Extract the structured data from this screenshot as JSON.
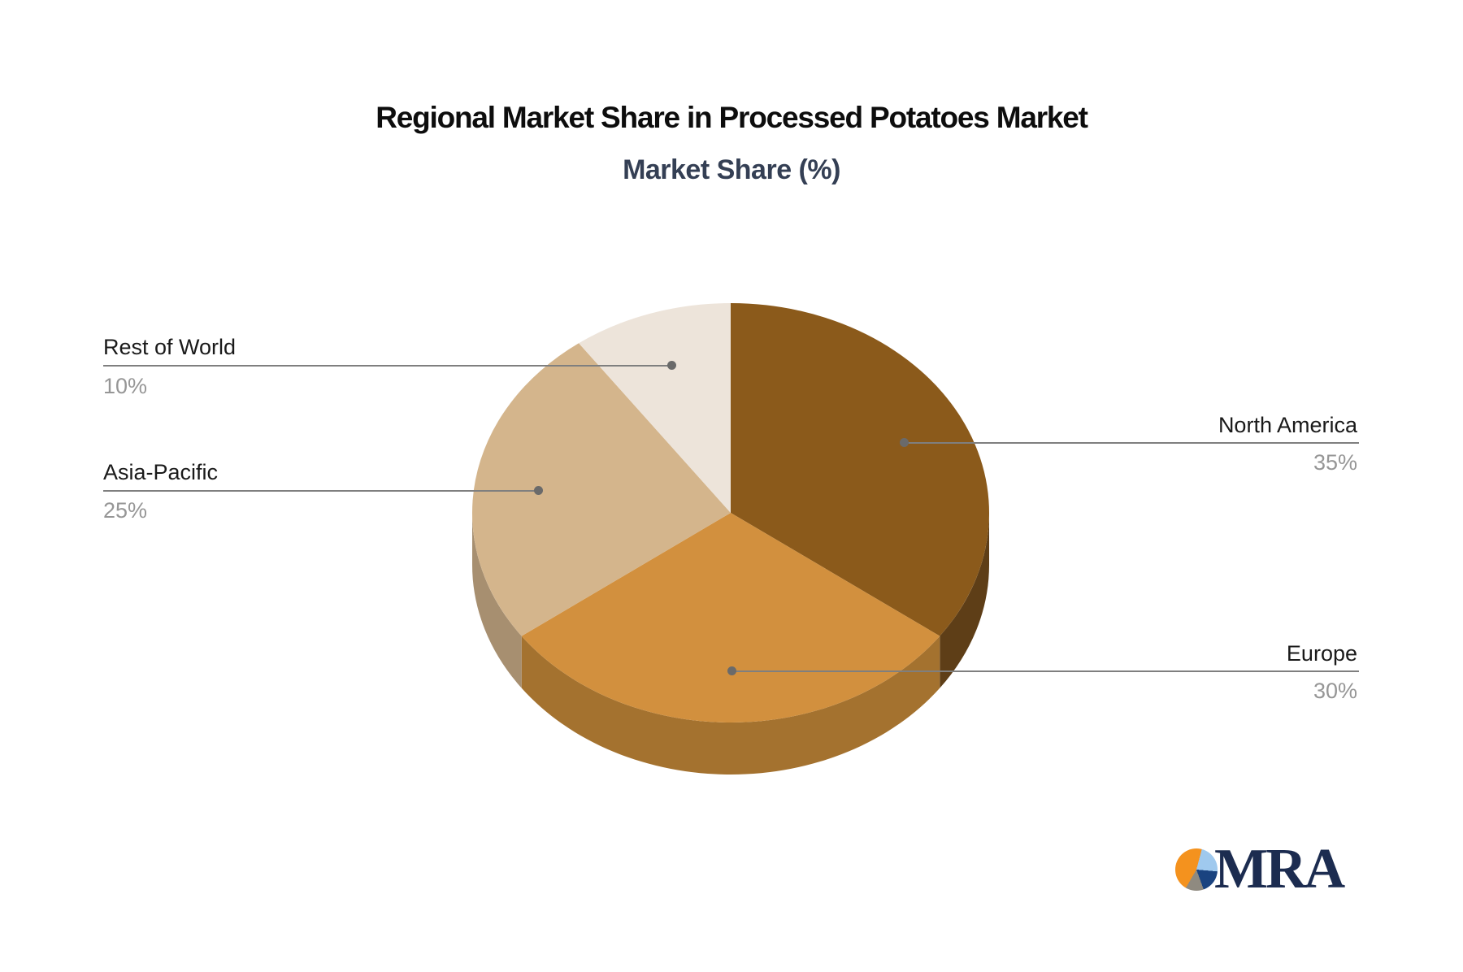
{
  "title": "Regional Market Share in Processed Potatoes Market",
  "subtitle": "Market Share (%)",
  "chart_data": {
    "type": "pie",
    "style": "3d",
    "title": "Regional Market Share in Processed Potatoes Market",
    "subtitle": "Market Share (%)",
    "unit": "%",
    "categories": [
      "North America",
      "Europe",
      "Asia-Pacific",
      "Rest of World"
    ],
    "values": [
      35,
      30,
      25,
      10
    ],
    "value_labels": [
      "35%",
      "30%",
      "25%",
      "10%"
    ],
    "start_angle_deg": 0,
    "direction": "clockwise",
    "slice_colors": [
      "#8B5A1B",
      "#D2903E",
      "#D4B58C",
      "#EDE4DA"
    ],
    "slice_side_colors": [
      "#5E3E17",
      "#A4722F",
      "#A78F70",
      "#CFC3B6"
    ],
    "legend": "none",
    "label_layout": [
      {
        "category": "North America",
        "side": "right"
      },
      {
        "category": "Europe",
        "side": "right"
      },
      {
        "category": "Asia-Pacific",
        "side": "left"
      },
      {
        "category": "Rest of World",
        "side": "left"
      }
    ]
  },
  "callout_style": {
    "line_color": "#7f7f7f",
    "dot_color": "#6a6a6a",
    "name_color": "#1a1a1a",
    "value_color": "#969696"
  },
  "logo": {
    "text": "MRA",
    "text_color": "#1c2c50",
    "slice_colors": {
      "orange": "#F4921E",
      "light_blue": "#9FC9EE",
      "dark_blue": "#1A4380",
      "gray": "#8F8A80"
    }
  }
}
